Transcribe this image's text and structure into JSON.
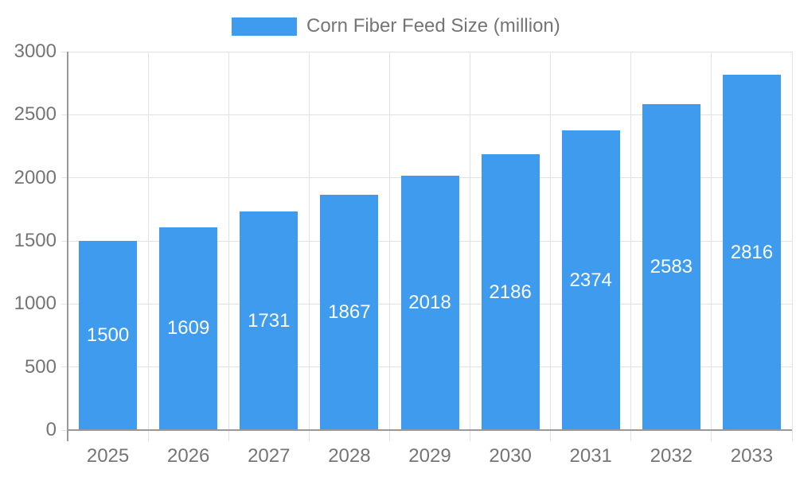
{
  "chart_data": {
    "type": "bar",
    "series_name": "Corn Fiber Feed Size (million)",
    "categories": [
      "2025",
      "2026",
      "2027",
      "2028",
      "2029",
      "2030",
      "2031",
      "2032",
      "2033"
    ],
    "values": [
      1500,
      1609,
      1731,
      1867,
      2018,
      2186,
      2374,
      2583,
      2816
    ],
    "value_labels": [
      1500,
      1609,
      1731,
      1867,
      2018,
      2186,
      2374,
      2583,
      2816
    ],
    "xlabel": "",
    "ylabel": "",
    "ylim": [
      0,
      3000
    ],
    "yticks": [
      0,
      500,
      1000,
      1500,
      2000,
      2500,
      3000
    ],
    "grid": true,
    "legend_position": "top",
    "value_label_position": "inside-center"
  },
  "colors": {
    "bar_fill": "#3E9BEE",
    "axis_line": "#999999",
    "grid_line": "#e2e2e6",
    "tick_text": "#757575",
    "value_label_text": "#ffffff",
    "background": "#ffffff"
  }
}
